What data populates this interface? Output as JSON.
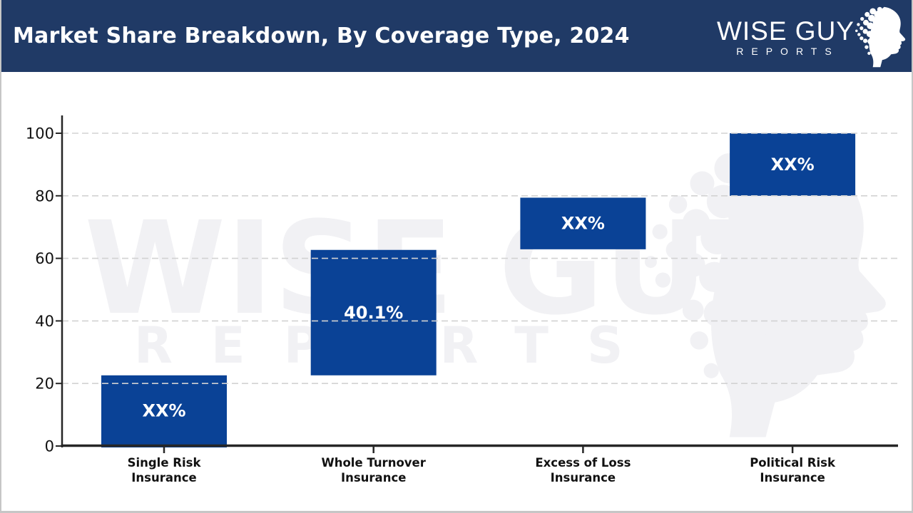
{
  "header": {
    "title": "Market Share Breakdown, By Coverage Type, 2024",
    "bg_color": "#203a66",
    "logo": {
      "line1": "WISE GUY",
      "line2": "REPORTS"
    }
  },
  "watermark": {
    "line1": "WISE GUY",
    "line2": "REPORTS"
  },
  "chart_data": {
    "type": "bar",
    "subtype": "floating-cumulative-share-bars",
    "title": "Market Share Breakdown, By Coverage Type, 2024",
    "categories": [
      [
        "Single Risk",
        "Insurance"
      ],
      [
        "Whole Turnover",
        "Insurance"
      ],
      [
        "Excess of Loss",
        "Insurance"
      ],
      [
        "Political Risk",
        "Insurance"
      ]
    ],
    "segments": [
      {
        "category": "Single Risk Insurance",
        "start": 0,
        "end": 22.6,
        "value_label": "XX%"
      },
      {
        "category": "Whole Turnover Insurance",
        "start": 22.6,
        "end": 62.7,
        "value_label": "40.1%"
      },
      {
        "category": "Excess of Loss Insurance",
        "start": 62.9,
        "end": 79.4,
        "value_label": "XX%"
      },
      {
        "category": "Political Risk Insurance",
        "start": 80.0,
        "end": 100.0,
        "value_label": "XX%"
      }
    ],
    "y_ticks": [
      0,
      20,
      40,
      60,
      80,
      100
    ],
    "ylim": [
      0,
      105.5
    ],
    "xlabel": "",
    "ylabel": "",
    "grid": "horizontal-dashed",
    "legend": "none",
    "colors": {
      "bar": "#0a4296",
      "bar_label": "#ffffff",
      "grid": "#d2d2d2",
      "axis": "#262626",
      "tick_label": "#111111"
    }
  },
  "frame": {
    "border_color": "#c6c6c6"
  }
}
